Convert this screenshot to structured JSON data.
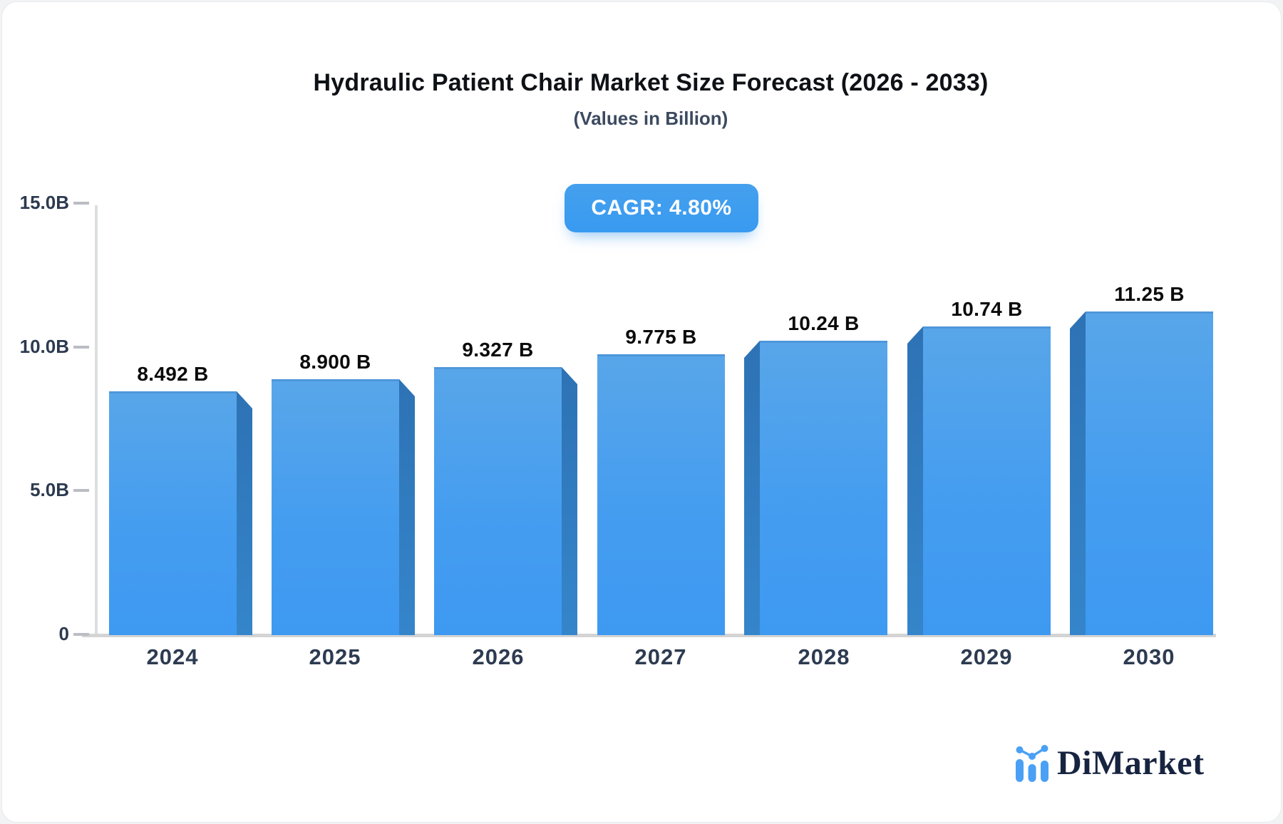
{
  "header": {
    "title": "Hydraulic Patient Chair Market Size Forecast (2026 - 2033)",
    "subtitle": "(Values in Billion)",
    "cagr_label": "CAGR: 4.80%"
  },
  "chart_data": {
    "type": "bar",
    "categories": [
      "2024",
      "2025",
      "2026",
      "2027",
      "2028",
      "2029",
      "2030"
    ],
    "values": [
      8.492,
      8.9,
      9.327,
      9.775,
      10.24,
      10.74,
      11.25
    ],
    "value_labels": [
      "8.492 B",
      "8.900 B",
      "9.327 B",
      "9.775 B",
      "10.24 B",
      "10.74 B",
      "11.25 B"
    ],
    "title": "Hydraulic Patient Chair Market Size Forecast (2026 - 2033)",
    "subtitle": "(Values in Billion)",
    "cagr": "4.80%",
    "xlabel": "",
    "ylabel": "",
    "ylim": [
      0,
      15
    ],
    "yticks": [
      {
        "value": 15,
        "label": "15.0B"
      },
      {
        "value": 10,
        "label": "10.0B"
      },
      {
        "value": 5,
        "label": "5.0B"
      },
      {
        "value": 0,
        "label": "0"
      }
    ],
    "grid": false,
    "legend": false,
    "bar_style": "3d-bevel",
    "colors": {
      "bar_top": "#58a6e9",
      "bar_bottom": "#3e99f1",
      "bar_edge": "#4e97da",
      "bevel": "#2d72b4",
      "axis": "#d4d4d4",
      "tick_text": "#2c3a4f",
      "label_text": "#0b0b0b",
      "badge_bg": "#3b99ea",
      "badge_text": "#ffffff"
    }
  },
  "branding": {
    "logo_text": "DiMarket",
    "logo_icon": "bar-line-chart-icon",
    "logo_color": "#172440",
    "icon_color": "#4aa0f5"
  }
}
